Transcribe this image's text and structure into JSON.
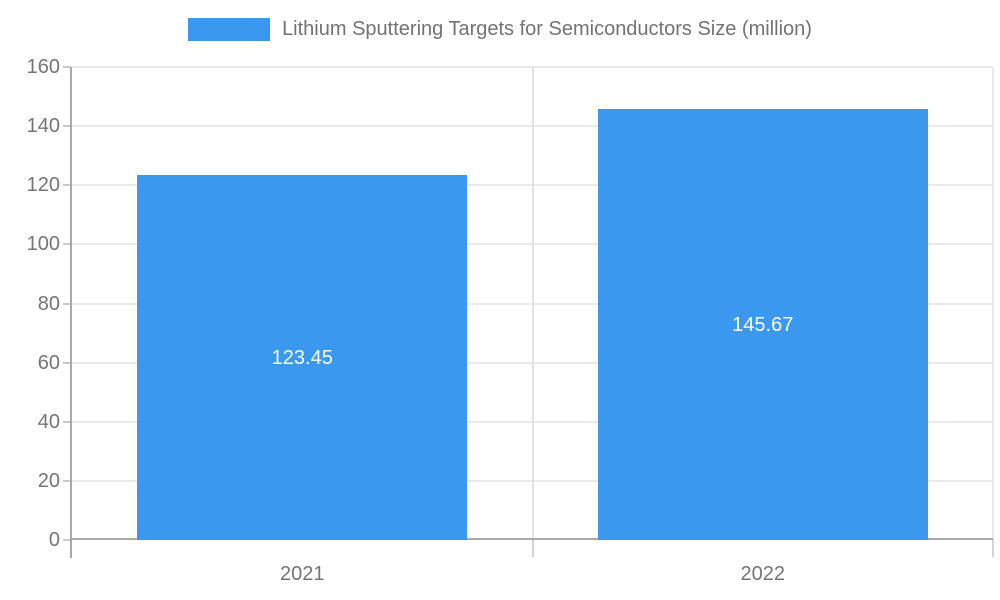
{
  "chart_data": {
    "type": "bar",
    "title": "Lithium Sputtering Targets for Semiconductors Size (million)",
    "legend": {
      "position": "top",
      "label": "Lithium Sputtering Targets for Semiconductors Size (million)",
      "swatch_color": "#3a99ee"
    },
    "categories": [
      "2021",
      "2022"
    ],
    "values": [
      123.45,
      145.67
    ],
    "value_labels": [
      "123.45",
      "145.67"
    ],
    "xlabel": "",
    "ylabel": "",
    "ylim": [
      0,
      160
    ],
    "y_ticks": [
      0,
      20,
      40,
      60,
      80,
      100,
      120,
      140,
      160
    ],
    "grid": true,
    "bar_color": "#3a99ee",
    "value_label_color": "#ffffff",
    "colors": {
      "text": "#757575",
      "legend_text": "#737373",
      "axis_line": "#a9a9a9",
      "gridline": "#eaeaea",
      "category_divider": "#e2e2e2",
      "tick_mark": "#c9c9c9",
      "boundary_tick": "#d4d4d4",
      "background": "#ffffff"
    }
  }
}
